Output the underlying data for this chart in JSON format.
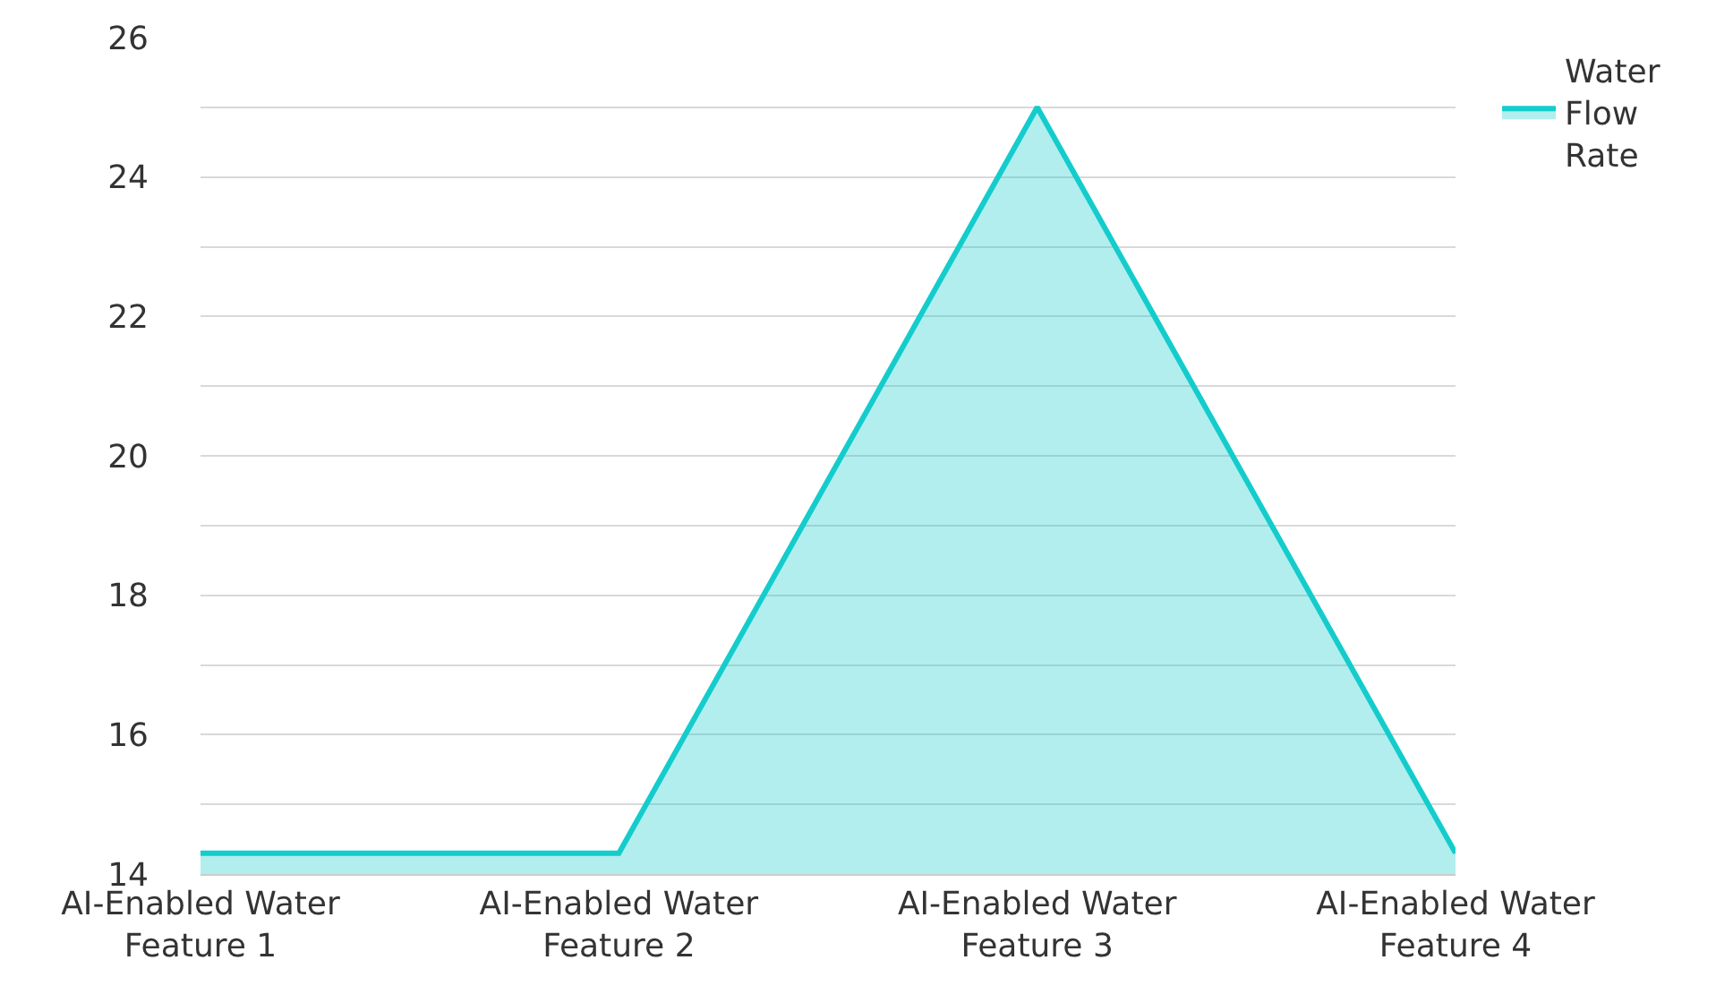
{
  "chart_data": {
    "type": "area",
    "categories": [
      "AI-Enabled Water Feature 1",
      "AI-Enabled Water Feature 2",
      "AI-Enabled Water Feature 3",
      "AI-Enabled Water Feature 4"
    ],
    "series": [
      {
        "name": "Water Flow Rate",
        "color": "#14cccc",
        "values": [
          14.3,
          14.3,
          25,
          14.3
        ]
      }
    ],
    "ylim": [
      14,
      26
    ],
    "yticks": [
      14,
      {
        "value": 15,
        "label": null
      },
      16,
      {
        "value": 17,
        "label": null
      },
      18,
      {
        "value": 19,
        "label": null
      },
      20,
      {
        "value": 21,
        "label": null
      },
      22,
      {
        "value": 23,
        "label": null
      },
      24,
      {
        "value": 25,
        "label": null
      },
      26
    ],
    "grid": "y",
    "legend": "top right"
  }
}
